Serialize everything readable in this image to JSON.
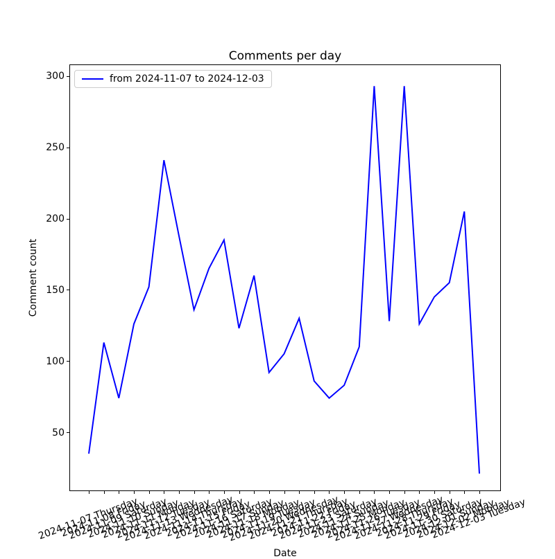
{
  "chart_data": {
    "type": "line",
    "title": "Comments per day",
    "xlabel": "Date",
    "ylabel": "Comment count",
    "legend": {
      "label": "from 2024-11-07 to 2024-12-03",
      "position": "upper left"
    },
    "line_color": "#0000ff",
    "grid": false,
    "categories": [
      "2024-11-07 Thursday",
      "2024-11-08 Friday",
      "2024-11-09 Saturday",
      "2024-11-10 Sunday",
      "2024-11-11 Monday",
      "2024-11-12 Tuesday",
      "2024-11-13 Wednesday",
      "2024-11-14 Thursday",
      "2024-11-15 Friday",
      "2024-11-16 Saturday",
      "2024-11-17 Sunday",
      "2024-11-18 Monday",
      "2024-11-19 Tuesday",
      "2024-11-20 Wednesday",
      "2024-11-21 Thursday",
      "2024-11-22 Friday",
      "2024-11-23 Saturday",
      "2024-11-24 Sunday",
      "2024-11-25 Monday",
      "2024-11-26 Tuesday",
      "2024-11-27 Wednesday",
      "2024-11-28 Thursday",
      "2024-11-29 Friday",
      "2024-11-30 Saturday",
      "2024-12-01 Sunday",
      "2024-12-02 Monday",
      "2024-12-03 Tuesday"
    ],
    "values": [
      35,
      113,
      74,
      126,
      152,
      241,
      188,
      136,
      165,
      185,
      123,
      160,
      92,
      105,
      130,
      86,
      74,
      83,
      110,
      293,
      128,
      293,
      126,
      145,
      155,
      205,
      21
    ],
    "yticks": [
      50,
      100,
      150,
      200,
      250,
      300
    ],
    "ylim": [
      8.7,
      308.2
    ]
  }
}
